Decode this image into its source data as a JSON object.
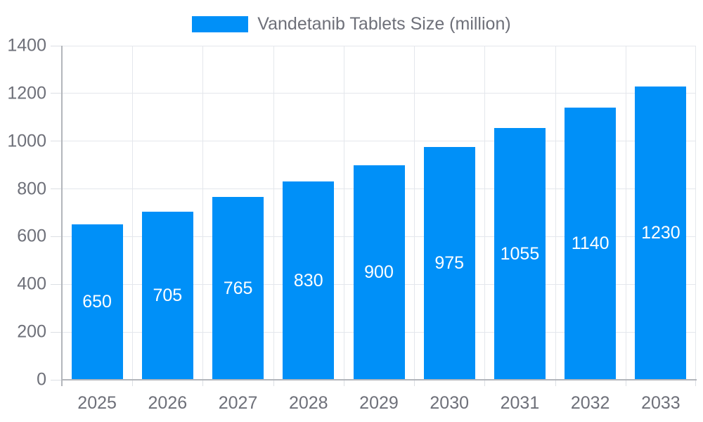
{
  "legend": {
    "label": "Vandetanib Tablets Size (million)",
    "swatch_color": "#0090f8"
  },
  "chart_data": {
    "type": "bar",
    "title": "Vandetanib Tablets Size (million)",
    "categories": [
      "2025",
      "2026",
      "2027",
      "2028",
      "2029",
      "2030",
      "2031",
      "2032",
      "2033"
    ],
    "values": [
      650,
      705,
      765,
      830,
      900,
      975,
      1055,
      1140,
      1230
    ],
    "xlabel": "",
    "ylabel": "",
    "ylim": [
      0,
      1400
    ],
    "yticks": [
      0,
      200,
      400,
      600,
      800,
      1000,
      1200,
      1400
    ],
    "grid": true,
    "legend_position": "top-center",
    "value_labels": "centered-inside-bars",
    "colors": {
      "bar": "#0090f8",
      "value_label": "#ffffff",
      "axis_text": "#6e7079",
      "axis_line": "#b3b6bb",
      "gridline": "#e4e7ec",
      "tick": "#dcdfe4",
      "background": "#ffffff"
    }
  }
}
